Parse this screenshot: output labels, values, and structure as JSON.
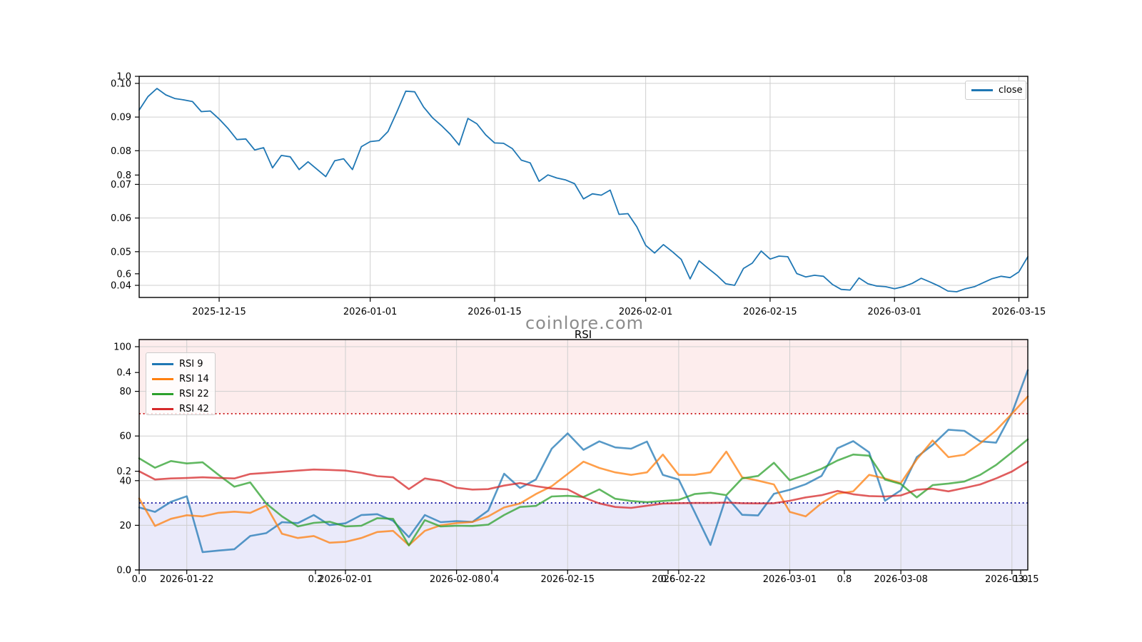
{
  "watermark": {
    "text": "coinlore.com"
  },
  "colors": {
    "close_line": "#1f77b4",
    "rsi9": "#1f77b4",
    "rsi14": "#ff7f0e",
    "rsi22": "#2ca02c",
    "rsi42": "#d62728",
    "overbought_band": "rgba(231,76,80,0.10)",
    "oversold_band": "rgba(90,90,214,0.13)",
    "overbought_line": "#cc2022",
    "oversold_line": "#1414a0",
    "grid": "#cfcfcf",
    "spine": "#000000",
    "watermark_color": "#8c8c8c"
  },
  "chart_data": [
    {
      "type": "line",
      "name": "price-panel",
      "title": "",
      "legend": [
        {
          "label": "close",
          "color_key": "close_line"
        }
      ],
      "legend_position": "upper right",
      "grid": true,
      "ylim": [
        0.0364,
        0.1021
      ],
      "yticks": [
        {
          "v": 0.04,
          "label": "0.04"
        },
        {
          "v": 0.05,
          "label": "0.05"
        },
        {
          "v": 0.06,
          "label": "0.06"
        },
        {
          "v": 0.07,
          "label": "0.07"
        },
        {
          "v": 0.08,
          "label": "0.08"
        },
        {
          "v": 0.09,
          "label": "0.09"
        },
        {
          "v": 0.1,
          "label": "0.10"
        }
      ],
      "xticks": [
        {
          "i": 9,
          "label": "2025-12-15"
        },
        {
          "i": 26,
          "label": "2026-01-01"
        },
        {
          "i": 40,
          "label": "2026-01-15"
        },
        {
          "i": 57,
          "label": "2026-02-01"
        },
        {
          "i": 71,
          "label": "2026-02-15"
        },
        {
          "i": 85,
          "label": "2026-03-01"
        },
        {
          "i": 99,
          "label": "2026-03-15"
        }
      ],
      "series": [
        {
          "name": "close",
          "color_key": "close_line",
          "width": 1.8,
          "opacity": 1,
          "values": [
            0.0921,
            0.0961,
            0.0985,
            0.0966,
            0.0955,
            0.0951,
            0.0946,
            0.0916,
            0.0918,
            0.0894,
            0.0866,
            0.0833,
            0.0835,
            0.0802,
            0.0809,
            0.0749,
            0.0786,
            0.0782,
            0.0744,
            0.0767,
            0.0745,
            0.0723,
            0.077,
            0.0776,
            0.0744,
            0.0812,
            0.0827,
            0.083,
            0.0857,
            0.0915,
            0.0977,
            0.0975,
            0.093,
            0.0898,
            0.0875,
            0.0849,
            0.0817,
            0.0896,
            0.088,
            0.0847,
            0.0823,
            0.0822,
            0.0806,
            0.0772,
            0.0764,
            0.0709,
            0.0728,
            0.0719,
            0.0713,
            0.0702,
            0.0657,
            0.0672,
            0.0668,
            0.0683,
            0.0611,
            0.0613,
            0.0574,
            0.0519,
            0.0496,
            0.0521,
            0.05,
            0.0477,
            0.0419,
            0.0473,
            0.0451,
            0.043,
            0.0405,
            0.04,
            0.045,
            0.0466,
            0.0502,
            0.0478,
            0.0487,
            0.0485,
            0.0435,
            0.0425,
            0.043,
            0.0427,
            0.0403,
            0.0388,
            0.0386,
            0.0422,
            0.0405,
            0.0398,
            0.0396,
            0.039,
            0.0396,
            0.0406,
            0.0421,
            0.041,
            0.0398,
            0.0383,
            0.0381,
            0.039,
            0.0396,
            0.0408,
            0.042,
            0.0427,
            0.0423,
            0.044,
            0.0485
          ]
        }
      ]
    },
    {
      "type": "line",
      "name": "rsi-panel",
      "title": "RSI",
      "legend": [
        {
          "label": "RSI 9",
          "color_key": "rsi9"
        },
        {
          "label": "RSI 14",
          "color_key": "rsi14"
        },
        {
          "label": "RSI 22",
          "color_key": "rsi22"
        },
        {
          "label": "RSI 42",
          "color_key": "rsi42"
        }
      ],
      "legend_position": "upper left",
      "grid": true,
      "ylim": [
        0,
        103.2
      ],
      "bands": [
        {
          "from": 70,
          "to": 103.2,
          "color_key": "overbought_band"
        },
        {
          "from": 0,
          "to": 30,
          "color_key": "oversold_band"
        }
      ],
      "hlines": [
        {
          "v": 70,
          "color_key": "overbought_line",
          "style": "dotted"
        },
        {
          "v": 30,
          "color_key": "oversold_line",
          "style": "dotted"
        }
      ],
      "yticks": [
        {
          "v": 0,
          "label": "0"
        },
        {
          "v": 20,
          "label": "20"
        },
        {
          "v": 40,
          "label": "40"
        },
        {
          "v": 60,
          "label": "60"
        },
        {
          "v": 80,
          "label": "80"
        },
        {
          "v": 100,
          "label": "100"
        }
      ],
      "xticks": [
        {
          "i": 3,
          "label": "2026-01-22"
        },
        {
          "i": 13,
          "label": "2026-02-01"
        },
        {
          "i": 20,
          "label": "2026-02-08"
        },
        {
          "i": 27,
          "label": "2026-02-15"
        },
        {
          "i": 34,
          "label": "2026-02-22"
        },
        {
          "i": 41,
          "label": "2026-03-01"
        },
        {
          "i": 48,
          "label": "2026-03-08"
        },
        {
          "i": 55,
          "label": "2026-03-15"
        }
      ],
      "series": [
        {
          "name": "RSI 9",
          "color_key": "rsi9",
          "width": 2.6,
          "opacity": 0.75,
          "values": [
            28,
            26,
            30.5,
            33,
            8,
            8.7,
            9.3,
            15.2,
            16.5,
            21.4,
            21,
            24.6,
            20.1,
            20.9,
            24.6,
            25,
            22,
            14.7,
            24.6,
            21.4,
            21.9,
            21.5,
            26.6,
            43.1,
            36.7,
            40.5,
            54.3,
            61.2,
            53.8,
            57.6,
            54.9,
            54.3,
            57.5,
            42.6,
            40.5,
            26,
            11.2,
            32.9,
            24.7,
            24.4,
            34.1,
            35.9,
            38.4,
            42.1,
            54.5,
            57.7,
            52.7,
            31,
            35.7,
            50.5,
            56,
            62.8,
            62.3,
            57.6,
            57,
            70.3,
            89.5
          ]
        },
        {
          "name": "RSI 14",
          "color_key": "rsi14",
          "width": 2.6,
          "opacity": 0.75,
          "values": [
            32,
            19.7,
            22.9,
            24.5,
            24,
            25.6,
            26.1,
            25.6,
            28.8,
            16.2,
            14.3,
            15.2,
            12.2,
            12.6,
            14.3,
            17,
            17.5,
            11.1,
            17.5,
            20,
            21,
            21.5,
            24,
            28,
            29.8,
            34,
            37.5,
            43,
            48.5,
            45.7,
            43.7,
            42.6,
            43.7,
            51.7,
            42.6,
            42.6,
            43.7,
            53,
            41.5,
            40,
            38.3,
            26,
            24,
            29.9,
            34.2,
            35.2,
            42.6,
            41,
            38.9,
            49.5,
            58,
            50.5,
            51.6,
            56.7,
            62.5,
            70,
            77.7
          ]
        },
        {
          "name": "RSI 22",
          "color_key": "rsi22",
          "width": 2.6,
          "opacity": 0.75,
          "values": [
            50,
            45.8,
            48.8,
            47.7,
            48.2,
            42.6,
            37.3,
            39.2,
            29.8,
            24,
            19.5,
            21.1,
            21.6,
            19.5,
            19.8,
            23.2,
            22.9,
            11,
            22.3,
            19.5,
            19.8,
            19.7,
            20.3,
            24.6,
            28.2,
            28.7,
            32.9,
            33.2,
            32.7,
            36.1,
            31.9,
            30.9,
            30.4,
            30.9,
            31.4,
            34,
            34.6,
            33.5,
            41,
            42.1,
            48,
            40.2,
            42.6,
            45.3,
            49,
            51.7,
            51.2,
            40.5,
            38.5,
            32.5,
            38,
            38.7,
            39.6,
            42.6,
            47,
            52.7,
            58.5
          ]
        },
        {
          "name": "RSI 42",
          "color_key": "rsi42",
          "width": 2.6,
          "opacity": 0.75,
          "values": [
            44.2,
            40.5,
            41,
            41.2,
            41.5,
            41.2,
            41,
            43,
            43.5,
            44,
            44.5,
            45,
            44.8,
            44.5,
            43.5,
            42,
            41.5,
            36.2,
            41,
            39.9,
            36.8,
            36,
            36.2,
            37.8,
            38.9,
            37.5,
            36.5,
            36.1,
            32.5,
            29.8,
            28.2,
            27.8,
            28.8,
            29.7,
            29.9,
            30,
            30,
            30.2,
            29.9,
            29.8,
            29.9,
            31,
            32.5,
            33.5,
            35.4,
            33.9,
            33.1,
            32.9,
            33.4,
            35.9,
            36.4,
            35.2,
            36.7,
            38.3,
            41,
            44.1,
            48.5
          ]
        }
      ]
    }
  ],
  "overlay_axis": {
    "yticks": [
      {
        "f": 1.0,
        "label": "1.0"
      },
      {
        "f": 0.8,
        "label": "0.8"
      },
      {
        "f": 0.6,
        "label": "0.6"
      },
      {
        "f": 0.4,
        "label": "0.4"
      },
      {
        "f": 0.2,
        "label": "0.2"
      },
      {
        "f": 0.0,
        "label": "0.0"
      }
    ],
    "xticks": [
      {
        "f": 0.0,
        "label": "0.0"
      },
      {
        "f": 0.2,
        "label": "0.2"
      },
      {
        "f": 0.4,
        "label": "0.4"
      },
      {
        "f": 0.6,
        "label": "0.6"
      },
      {
        "f": 0.8,
        "label": "0.8"
      },
      {
        "f": 1.0,
        "label": "1.0"
      }
    ]
  }
}
